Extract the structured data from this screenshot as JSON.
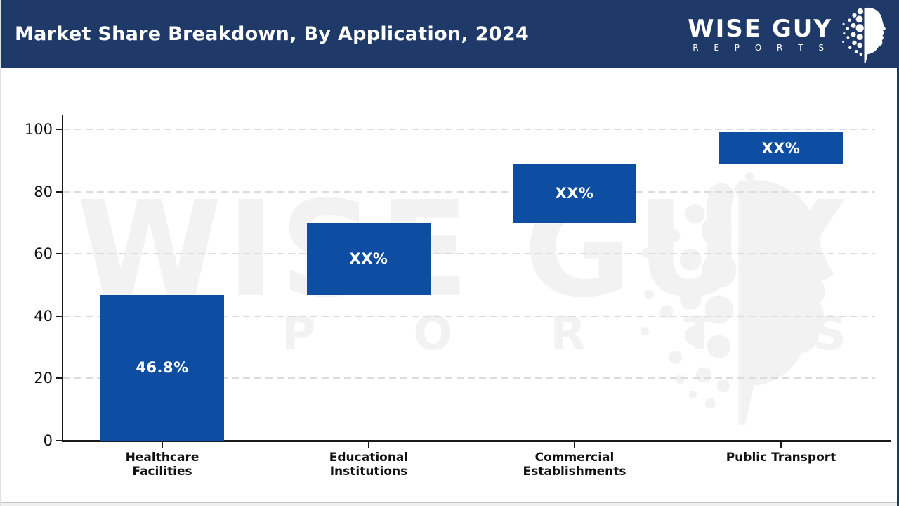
{
  "header": {
    "title": "Market Share Breakdown, By Application, 2024",
    "logo": {
      "line1": "WISE GUY",
      "line2": "R E P O R T S"
    }
  },
  "watermark": {
    "line1": "WISE GUY",
    "line2": "P O R T S"
  },
  "colors": {
    "header_bg": "#1f3a68",
    "bar": "#0d4da2",
    "bar_label": "#ffffff",
    "grid": "#dcdcdc",
    "axis": "#1a1a1a",
    "watermark": "#f2f2f2"
  },
  "chart_data": {
    "type": "bar",
    "subtype": "waterfall",
    "title": "Market Share Breakdown, By Application, 2024",
    "xlabel": "",
    "ylabel": "",
    "ylim": [
      0,
      100
    ],
    "yticks": [
      0,
      20,
      40,
      60,
      80,
      100
    ],
    "grid": "horizontal-dashed",
    "legend": "none",
    "categories": [
      "Healthcare Facilities",
      "Educational Institutions",
      "Commercial Establishments",
      "Public Transport"
    ],
    "segments": [
      {
        "category_lines": [
          "Healthcare",
          "Facilities"
        ],
        "start": 0,
        "end": 46.8,
        "label": "46.8%"
      },
      {
        "category_lines": [
          "Educational",
          "Institutions"
        ],
        "start": 46.8,
        "end": 70,
        "label": "XX%"
      },
      {
        "category_lines": [
          "Commercial",
          "Establishments"
        ],
        "start": 70,
        "end": 89,
        "label": "XX%"
      },
      {
        "category_lines": [
          "Public Transport"
        ],
        "start": 89,
        "end": 99,
        "label": "XX%"
      }
    ]
  }
}
